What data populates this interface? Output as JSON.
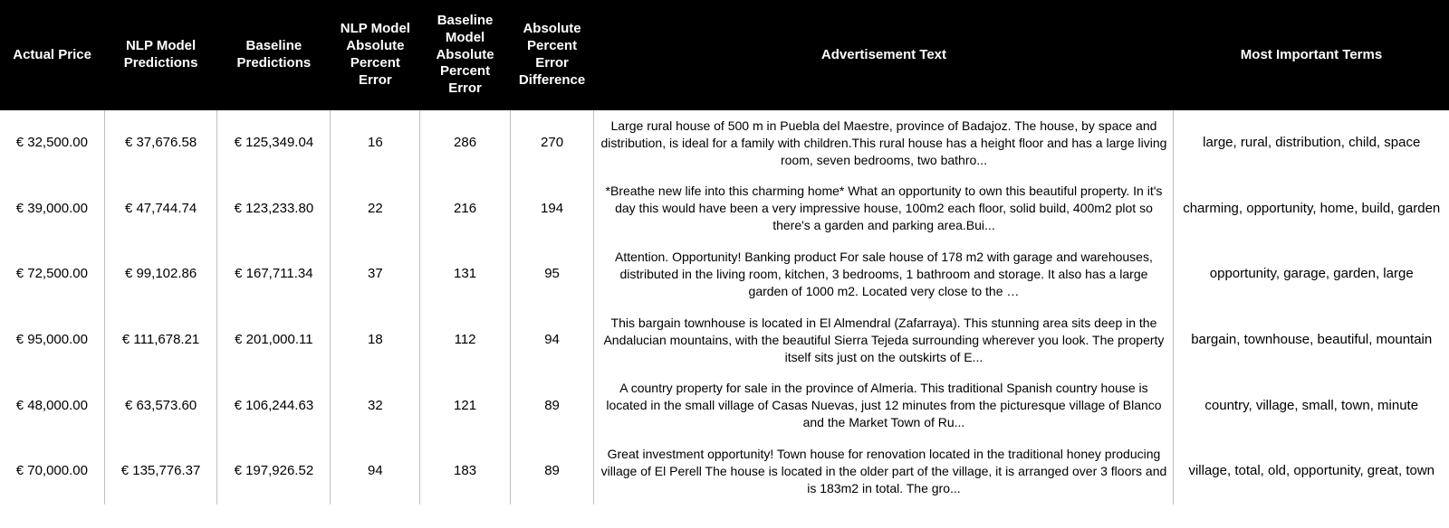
{
  "table": {
    "header_bg": "#000000",
    "header_fg": "#ffffff",
    "cell_border": "#bfbfbf",
    "columns": [
      {
        "key": "actual",
        "label": "Actual Price"
      },
      {
        "key": "nlp",
        "label": "NLP Model Predictions"
      },
      {
        "key": "base",
        "label": "Baseline Predictions"
      },
      {
        "key": "nlp_ape",
        "label": "NLP Model Absolute Percent Error"
      },
      {
        "key": "base_ape",
        "label": "Baseline Model Absolute Percent Error"
      },
      {
        "key": "diff",
        "label": "Absolute Percent Error Difference"
      },
      {
        "key": "ad",
        "label": "Advertisement Text"
      },
      {
        "key": "terms",
        "label": "Most Important Terms"
      }
    ],
    "rows": [
      {
        "actual": "€ 32,500.00",
        "nlp": "€ 37,676.58",
        "base": "€ 125,349.04",
        "nlp_ape": "16",
        "base_ape": "286",
        "diff": "270",
        "ad": "Large rural house of 500 m in Puebla del Maestre, province of Badajoz. The house, by space and distribution, is ideal for a family with children.This rural house has a height floor and has a large living room, seven bedrooms, two bathro...",
        "terms": "large, rural, distribution, child, space"
      },
      {
        "actual": "€ 39,000.00",
        "nlp": "€ 47,744.74",
        "base": "€ 123,233.80",
        "nlp_ape": "22",
        "base_ape": "216",
        "diff": "194",
        "ad": "*Breathe new life into this charming home* What an opportunity to own this beautiful property. In it's day this would have been a very impressive house, 100m2 each floor, solid build, 400m2 plot so there's a garden and parking area.Bui...",
        "terms": "charming, opportunity, home, build, garden"
      },
      {
        "actual": "€ 72,500.00",
        "nlp": "€ 99,102.86",
        "base": "€ 167,711.34",
        "nlp_ape": "37",
        "base_ape": "131",
        "diff": "95",
        "ad": "Attention. Opportunity!  Banking product  For sale house of 178 m2 with garage and warehouses, distributed in the living room, kitchen, 3 bedrooms, 1 bathroom and storage. It also has a large garden of 1000 m2. Located very close to the …",
        "terms": "opportunity, garage, garden, large"
      },
      {
        "actual": "€ 95,000.00",
        "nlp": "€ 111,678.21",
        "base": "€ 201,000.11",
        "nlp_ape": "18",
        "base_ape": "112",
        "diff": "94",
        "ad": "This bargain townhouse is located in El Almendral (Zafarraya). This stunning area sits deep in the Andalucian mountains, with the beautiful Sierra Tejeda surrounding  wherever you look. The property itself sits just on the outskirts of E...",
        "terms": "bargain, townhouse, beautiful, mountain"
      },
      {
        "actual": "€ 48,000.00",
        "nlp": "€ 63,573.60",
        "base": "€ 106,244.63",
        "nlp_ape": "32",
        "base_ape": "121",
        "diff": "89",
        "ad": "A country property for sale in the province of Almeria. This traditional Spanish country house is located in the small village of Casas Nuevas, just 12 minutes from the picturesque village of  Blanco and the Market Town of Ru...",
        "terms": "country, village, small, town, minute"
      },
      {
        "actual": "€ 70,000.00",
        "nlp": "€ 135,776.37",
        "base": "€ 197,926.52",
        "nlp_ape": "94",
        "base_ape": "183",
        "diff": "89",
        "ad": "Great investment opportunity! Town house for renovation located in the traditional honey producing village of El Perell The house is located in the older part of the village, it is arranged over 3 floors and is 183m2 in total. The gro...",
        "terms": "village, total, old, opportunity, great, town"
      }
    ]
  }
}
